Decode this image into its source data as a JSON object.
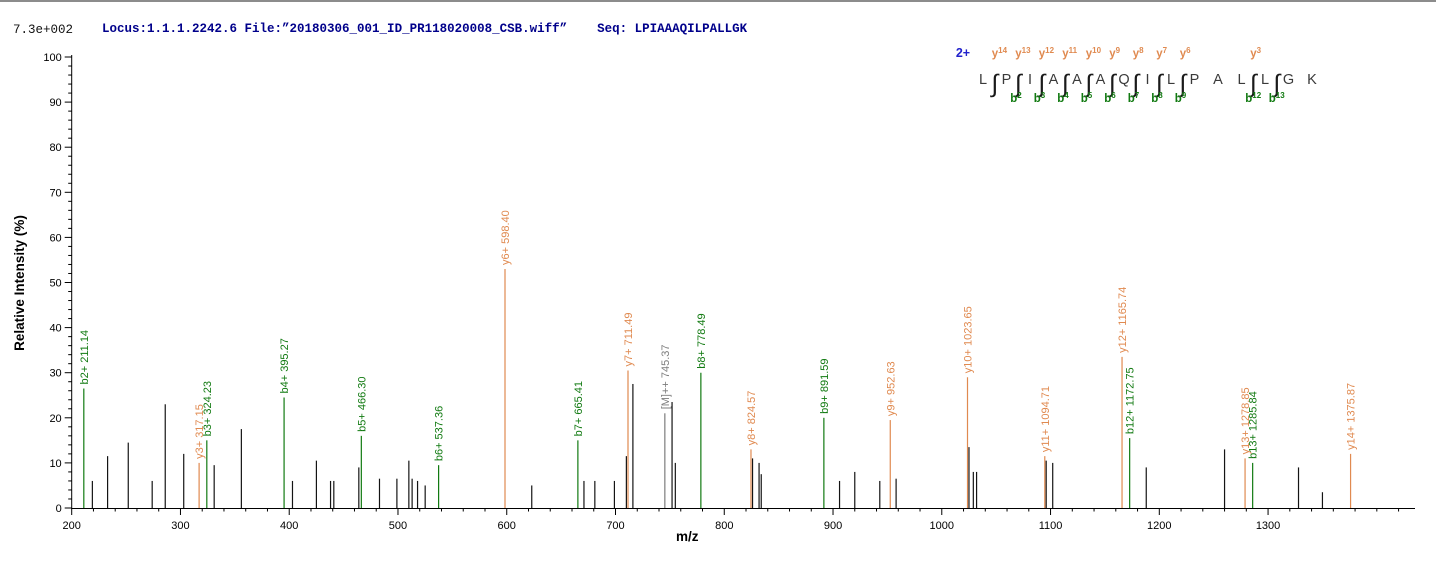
{
  "header": {
    "locus_file": "Locus:1.1.1.2242.6 File:”20180306_001_ID_PR118020008_CSB.wiff”",
    "seq": "Seq: LPIAAAQILPALLGK",
    "scale_note": "7.3e+002"
  },
  "colors": {
    "b_ion": "#117a11",
    "y_ion": "#e08a50",
    "precursor": "#7d7d7d",
    "unassigned_peak": "#141414",
    "axis": "#000000",
    "header_text": "#00008b",
    "charge_label": "#2222cc",
    "residue_text": "#3a3a3a",
    "divider": "#1a1a1a"
  },
  "sequence_annotation": {
    "charge": "2+",
    "peptide": "LPIAAAQILPALLGK",
    "residues": [
      {
        "aa": "L",
        "y": "y14",
        "b": null
      },
      {
        "aa": "P",
        "y": "y13",
        "b": "b2"
      },
      {
        "aa": "I",
        "y": "y12",
        "b": "b3"
      },
      {
        "aa": "A",
        "y": "y11",
        "b": "b4"
      },
      {
        "aa": "A",
        "y": "y10",
        "b": "b5"
      },
      {
        "aa": "A",
        "y": "y9",
        "b": "b6"
      },
      {
        "aa": "Q",
        "y": "y8",
        "b": "b7"
      },
      {
        "aa": "I",
        "y": "y7",
        "b": "b8"
      },
      {
        "aa": "L",
        "y": "y6",
        "b": "b9"
      },
      {
        "aa": "P",
        "y": null,
        "b": null
      },
      {
        "aa": "A",
        "y": null,
        "b": null
      },
      {
        "aa": "L",
        "y": "y3",
        "b": "b12"
      },
      {
        "aa": "L",
        "y": null,
        "b": "b13"
      },
      {
        "aa": "G",
        "y": null,
        "b": null
      },
      {
        "aa": "K",
        "y": null,
        "b": null
      }
    ]
  },
  "chart_data": {
    "type": "bar",
    "variant": "ms2-centroid-spectrum",
    "title": "",
    "xlabel": "m/z",
    "ylabel": "Relative  Intensity (%)",
    "xlim": [
      200,
      1435
    ],
    "ylim": [
      0,
      100
    ],
    "x_major_tick_step": 100,
    "x_minor_tick_step": 20,
    "x_last_labeled_tick": 1300,
    "y_major_tick_step": 10,
    "y_minor_tick_step": 2,
    "grid": false,
    "legend": false,
    "annotated_peaks": [
      {
        "label": "b2+ 211.14",
        "mz": 211.14,
        "intensity_pct": 26.5,
        "ion": "b"
      },
      {
        "label": "y3+ 317.15",
        "mz": 317.15,
        "intensity_pct": 10.0,
        "ion": "y"
      },
      {
        "label": "b3+ 324.23",
        "mz": 324.23,
        "intensity_pct": 15.0,
        "ion": "b"
      },
      {
        "label": "b4+ 395.27",
        "mz": 395.27,
        "intensity_pct": 24.5,
        "ion": "b"
      },
      {
        "label": "b5+ 466.30",
        "mz": 466.3,
        "intensity_pct": 16.0,
        "ion": "b"
      },
      {
        "label": "b6+ 537.36",
        "mz": 537.36,
        "intensity_pct": 9.5,
        "ion": "b"
      },
      {
        "label": "y6+ 598.40",
        "mz": 598.4,
        "intensity_pct": 53.0,
        "ion": "y"
      },
      {
        "label": "b7+ 665.41",
        "mz": 665.41,
        "intensity_pct": 15.0,
        "ion": "b"
      },
      {
        "label": "y7+ 711.49",
        "mz": 711.49,
        "intensity_pct": 30.5,
        "ion": "y"
      },
      {
        "label": "[M]++ 745.37",
        "mz": 745.37,
        "intensity_pct": 21.0,
        "ion": "M"
      },
      {
        "label": "b8+ 778.49",
        "mz": 778.49,
        "intensity_pct": 30.0,
        "ion": "b"
      },
      {
        "label": "y8+ 824.57",
        "mz": 824.57,
        "intensity_pct": 13.0,
        "ion": "y"
      },
      {
        "label": "b9+ 891.59",
        "mz": 891.59,
        "intensity_pct": 20.0,
        "ion": "b"
      },
      {
        "label": "y9+ 952.63",
        "mz": 952.63,
        "intensity_pct": 19.5,
        "ion": "y"
      },
      {
        "label": "y10+ 1023.65",
        "mz": 1023.65,
        "intensity_pct": 29.0,
        "ion": "y"
      },
      {
        "label": "y11+ 1094.71",
        "mz": 1094.71,
        "intensity_pct": 11.5,
        "ion": "y"
      },
      {
        "label": "y12+ 1165.74",
        "mz": 1165.74,
        "intensity_pct": 33.5,
        "ion": "y"
      },
      {
        "label": "b12+ 1172.75",
        "mz": 1172.75,
        "intensity_pct": 15.5,
        "ion": "b"
      },
      {
        "label": "y13+ 1278.85",
        "mz": 1278.85,
        "intensity_pct": 11.0,
        "ion": "y"
      },
      {
        "label": "b13+ 1285.84",
        "mz": 1285.84,
        "intensity_pct": 10.0,
        "ion": "b"
      },
      {
        "label": "y14+ 1375.87",
        "mz": 1375.87,
        "intensity_pct": 12.0,
        "ion": "y"
      }
    ],
    "unassigned_peaks": [
      [
        219,
        6
      ],
      [
        233,
        11.5
      ],
      [
        252,
        14.5
      ],
      [
        274,
        6
      ],
      [
        286,
        23
      ],
      [
        303,
        12
      ],
      [
        331,
        9.5
      ],
      [
        356,
        17.5
      ],
      [
        403,
        6
      ],
      [
        425,
        10.5
      ],
      [
        438,
        6
      ],
      [
        441,
        6
      ],
      [
        464,
        9
      ],
      [
        483,
        6.5
      ],
      [
        499,
        6.5
      ],
      [
        510,
        10.5
      ],
      [
        513,
        6.5
      ],
      [
        518,
        6
      ],
      [
        525,
        5
      ],
      [
        623,
        5
      ],
      [
        671,
        6
      ],
      [
        681,
        6
      ],
      [
        699,
        6
      ],
      [
        710,
        11.5
      ],
      [
        716,
        27.5
      ],
      [
        752,
        23.5
      ],
      [
        755,
        10
      ],
      [
        826,
        11
      ],
      [
        832,
        10
      ],
      [
        834,
        7.5
      ],
      [
        906,
        6
      ],
      [
        920,
        8
      ],
      [
        943,
        6
      ],
      [
        958,
        6.5
      ],
      [
        1025,
        13.5
      ],
      [
        1029,
        8
      ],
      [
        1032,
        8
      ],
      [
        1096,
        10.5
      ],
      [
        1102,
        10
      ],
      [
        1188,
        9
      ],
      [
        1260,
        13
      ],
      [
        1328,
        9
      ],
      [
        1350,
        3.5
      ]
    ]
  }
}
